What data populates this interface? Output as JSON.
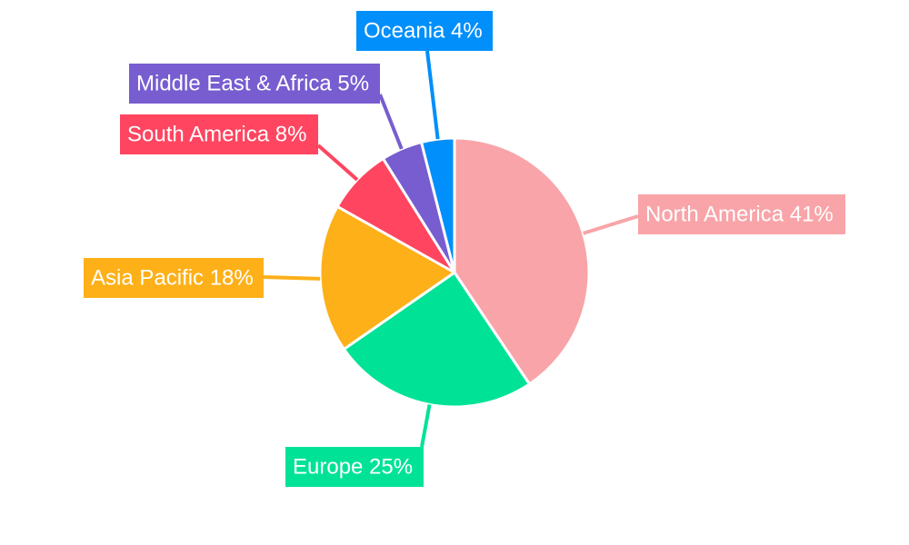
{
  "chart_data": {
    "type": "pie",
    "title": "",
    "slices": [
      {
        "label": "North America",
        "value": 41,
        "display": "41%",
        "color": "#F8A4A8"
      },
      {
        "label": "Europe",
        "value": 25,
        "display": "25%",
        "color": "#00E396"
      },
      {
        "label": "Asia Pacific",
        "value": 18,
        "display": "18%",
        "color": "#FEB019"
      },
      {
        "label": "South America",
        "value": 8,
        "display": "8%",
        "color": "#FF4560"
      },
      {
        "label": "Middle East & Africa",
        "value": 5,
        "display": "5%",
        "color": "#775DD0"
      },
      {
        "label": "Oceania",
        "value": 4,
        "display": "4%",
        "color": "#008FFB"
      }
    ],
    "start_angle": "12 o'clock",
    "direction": "clockwise",
    "labels": "outside with leader lines"
  }
}
